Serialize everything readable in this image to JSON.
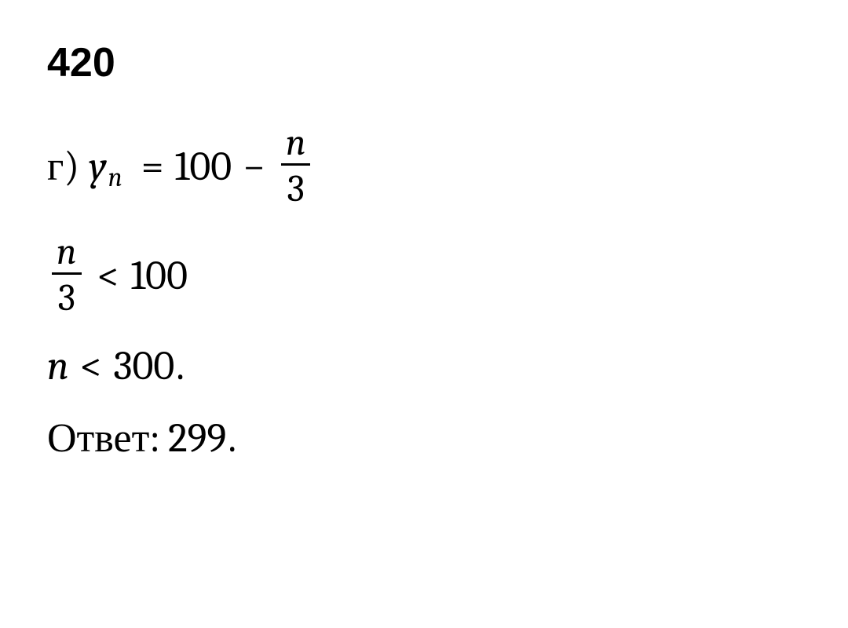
{
  "problem": {
    "number": "420",
    "part_label": "г)",
    "equation": {
      "lhs_var": "y",
      "lhs_sub": "n",
      "equals": "=",
      "rhs_const": "100",
      "minus": "−",
      "frac_num": "n",
      "frac_den": "3"
    },
    "step1": {
      "frac_num": "n",
      "frac_den": "3",
      "lt": "<",
      "rhs": "100"
    },
    "step2": {
      "var": "n",
      "lt": "<",
      "rhs": "300",
      "period": "."
    },
    "answer": {
      "label": "Ответ:",
      "value": "299",
      "period": "."
    }
  },
  "style": {
    "font_main": "Cambria, Times New Roman, serif",
    "font_bold": "Arial, sans-serif",
    "text_color": "#000000",
    "background_color": "#ffffff",
    "number_fontsize": 52,
    "body_fontsize": 52,
    "sub_fontsize": 34,
    "frac_fontsize": 48
  }
}
